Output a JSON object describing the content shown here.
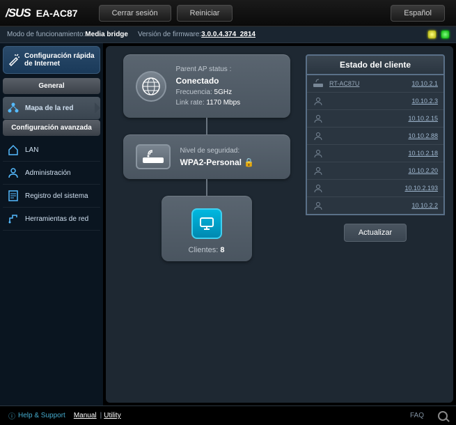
{
  "header": {
    "brand": "/SUS",
    "model": "EA-AC87",
    "logout": "Cerrar sesión",
    "reboot": "Reiniciar",
    "language": "Español"
  },
  "infobar": {
    "mode_label": "Modo de funcionamiento: ",
    "mode_value": "Media bridge",
    "fw_label": "Versión de firmware: ",
    "fw_value": "3.0.0.4.374_2814"
  },
  "sidebar": {
    "wizard": "Configuración rápida de Internet",
    "general_hdr": "General",
    "netmap": "Mapa de la red",
    "advanced_hdr": "Configuración avanzada",
    "items": [
      {
        "label": "LAN"
      },
      {
        "label": "Administración"
      },
      {
        "label": "Registro del sistema"
      },
      {
        "label": "Herramientas de red"
      }
    ]
  },
  "status": {
    "parent_label": "Parent AP status :",
    "parent_value": "Conectado",
    "freq_label": "Frecuencia: ",
    "freq_value": "5GHz",
    "rate_label": "Link rate: ",
    "rate_value": "1170 Mbps",
    "sec_label": "Nivel de seguridad:",
    "sec_value": "WPA2-Personal",
    "clients_label": "Clientes: ",
    "clients_count": "8"
  },
  "clients": {
    "title": "Estado del cliente",
    "refresh": "Actualizar",
    "rows": [
      {
        "name": "RT-AC87U",
        "ip": "10.10.2.1",
        "router": true
      },
      {
        "name": "",
        "ip": "10.10.2.3"
      },
      {
        "name": "",
        "ip": "10.10.2.15"
      },
      {
        "name": "",
        "ip": "10.10.2.88"
      },
      {
        "name": "",
        "ip": "10.10.2.18"
      },
      {
        "name": "",
        "ip": "10.10.2.20"
      },
      {
        "name": "",
        "ip": "10.10.2.193"
      },
      {
        "name": "",
        "ip": "10.10.2.2"
      }
    ]
  },
  "footer": {
    "help": "Help & Support",
    "manual": "Manual",
    "utility": "Utility",
    "faq": "FAQ"
  }
}
